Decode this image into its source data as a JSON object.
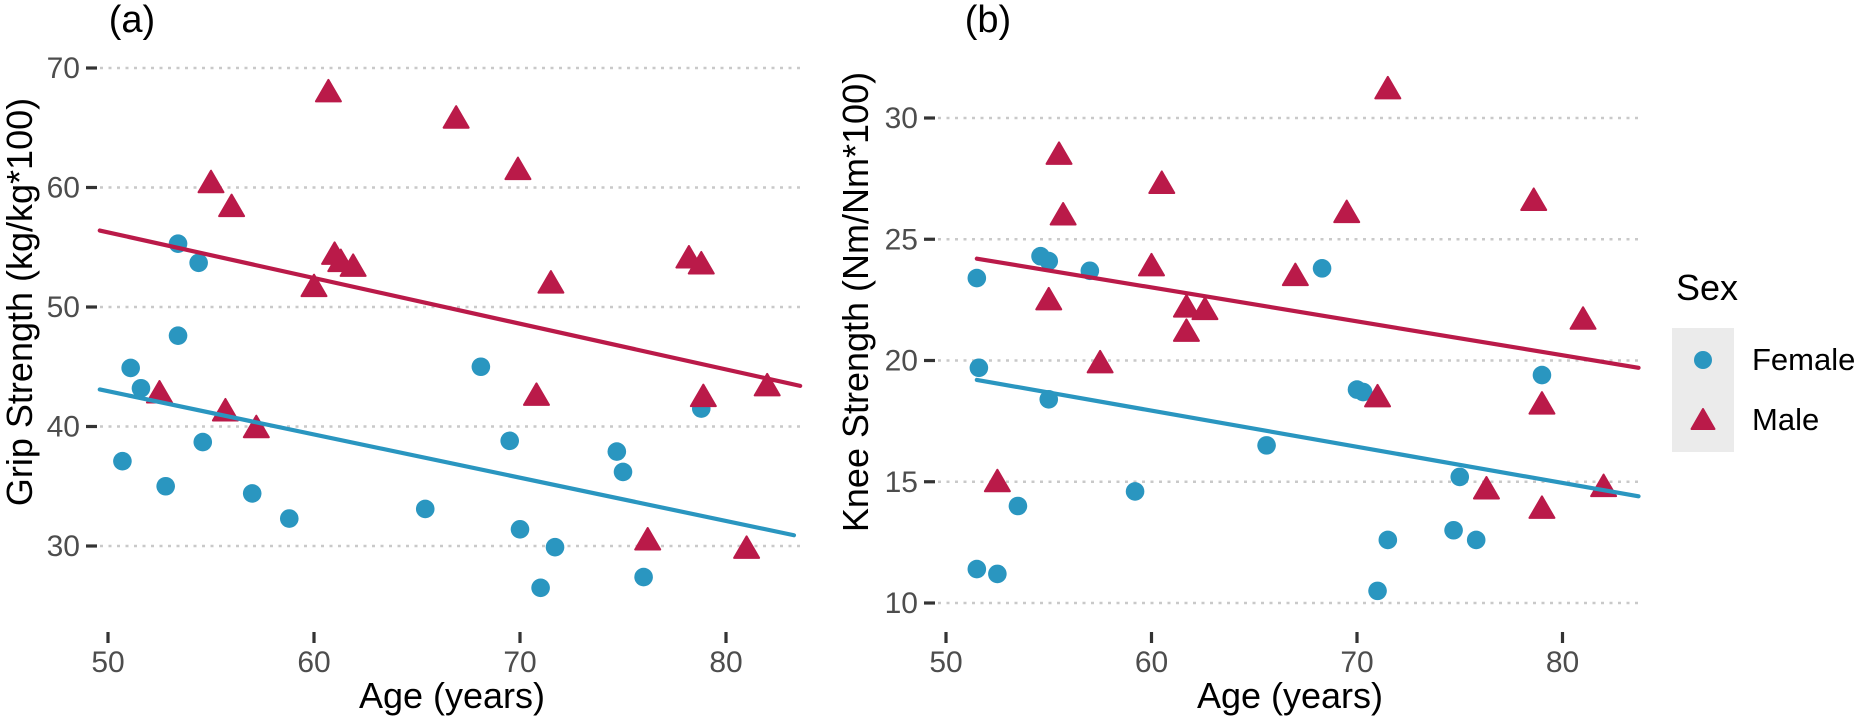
{
  "figure": {
    "background": "#ffffff",
    "description": "Two-panel scatter plot with linear trend lines by sex"
  },
  "colors": {
    "female": "#2a96c0",
    "male": "#ba1a49",
    "gridline": "#c9c9c9",
    "tick_text": "#4d4d4d",
    "text": "#000000",
    "legend_key_bg": "#ebebeb",
    "background": "#ffffff"
  },
  "legend": {
    "title": "Sex",
    "position": "right",
    "items": [
      {
        "label": "Female",
        "marker": "circle",
        "color": "#2a96c0"
      },
      {
        "label": "Male",
        "marker": "triangle",
        "color": "#ba1a49"
      }
    ]
  },
  "chart_data": [
    {
      "type": "scatter",
      "panel_label": "(a)",
      "xlabel": "Age (years)",
      "ylabel": "Grip Strength (kg/kg*100)",
      "xlim": [
        49.5,
        84.0
      ],
      "ylim": [
        23.0,
        73.5
      ],
      "xticks": [
        50,
        60,
        70,
        80
      ],
      "yticks": [
        30,
        40,
        50,
        60,
        70
      ],
      "grid": {
        "horizontal": "dotted",
        "vertical": "none"
      },
      "series": [
        {
          "name": "Female",
          "marker": "circle",
          "color": "#2a96c0",
          "points": [
            [
              50.7,
              37.1
            ],
            [
              51.1,
              44.9
            ],
            [
              51.6,
              43.2
            ],
            [
              52.8,
              35.0
            ],
            [
              53.4,
              55.3
            ],
            [
              53.4,
              47.6
            ],
            [
              54.4,
              53.7
            ],
            [
              54.6,
              38.7
            ],
            [
              57.0,
              34.4
            ],
            [
              58.8,
              32.3
            ],
            [
              65.4,
              33.1
            ],
            [
              68.1,
              45.0
            ],
            [
              69.5,
              38.8
            ],
            [
              70.0,
              31.4
            ],
            [
              71.0,
              26.5
            ],
            [
              71.7,
              29.9
            ],
            [
              74.7,
              37.9
            ],
            [
              75.0,
              36.2
            ],
            [
              76.0,
              27.4
            ],
            [
              78.8,
              41.5
            ]
          ]
        },
        {
          "name": "Male",
          "marker": "triangle",
          "color": "#ba1a49",
          "points": [
            [
              52.5,
              42.8
            ],
            [
              55.0,
              60.4
            ],
            [
              55.7,
              41.3
            ],
            [
              56.0,
              58.4
            ],
            [
              57.2,
              39.9
            ],
            [
              60.0,
              51.7
            ],
            [
              60.7,
              68.0
            ],
            [
              61.0,
              54.4
            ],
            [
              61.3,
              53.8
            ],
            [
              61.9,
              53.4
            ],
            [
              66.9,
              65.8
            ],
            [
              69.9,
              61.5
            ],
            [
              70.8,
              42.6
            ],
            [
              71.5,
              52.0
            ],
            [
              76.2,
              30.5
            ],
            [
              78.2,
              54.1
            ],
            [
              78.8,
              53.6
            ],
            [
              78.9,
              42.5
            ],
            [
              81.0,
              29.8
            ],
            [
              82.0,
              43.4
            ]
          ]
        }
      ],
      "trend_lines": [
        {
          "name": "Female",
          "color": "#2a96c0",
          "from": [
            49.6,
            43.1
          ],
          "to": [
            83.3,
            30.9
          ]
        },
        {
          "name": "Male",
          "color": "#ba1a49",
          "from": [
            49.6,
            56.4
          ],
          "to": [
            83.6,
            43.4
          ]
        }
      ]
    },
    {
      "type": "scatter",
      "panel_label": "(b)",
      "xlabel": "Age (years)",
      "ylabel": "Knee Strength (Nm/Nm*100)",
      "xlim": [
        49.5,
        84.2
      ],
      "ylim": [
        8.8,
        33.7
      ],
      "xticks": [
        50,
        60,
        70,
        80
      ],
      "yticks": [
        10,
        15,
        20,
        25,
        30
      ],
      "grid": {
        "horizontal": "dotted",
        "vertical": "none"
      },
      "series": [
        {
          "name": "Female",
          "marker": "circle",
          "color": "#2a96c0",
          "points": [
            [
              51.5,
              23.4
            ],
            [
              51.6,
              19.7
            ],
            [
              51.5,
              11.4
            ],
            [
              52.5,
              11.2
            ],
            [
              53.5,
              14.0
            ],
            [
              54.6,
              24.3
            ],
            [
              55.0,
              24.1
            ],
            [
              55.0,
              18.4
            ],
            [
              57.0,
              23.7
            ],
            [
              59.2,
              14.6
            ],
            [
              65.6,
              16.5
            ],
            [
              68.3,
              23.8
            ],
            [
              70.0,
              18.8
            ],
            [
              70.3,
              18.7
            ],
            [
              71.0,
              10.5
            ],
            [
              71.5,
              12.6
            ],
            [
              74.7,
              13.0
            ],
            [
              75.0,
              15.2
            ],
            [
              75.8,
              12.6
            ],
            [
              79.0,
              19.4
            ]
          ]
        },
        {
          "name": "Male",
          "marker": "triangle",
          "color": "#ba1a49",
          "points": [
            [
              52.5,
              15.0
            ],
            [
              55.0,
              22.5
            ],
            [
              55.5,
              28.5
            ],
            [
              55.7,
              26.0
            ],
            [
              57.5,
              19.9
            ],
            [
              60.0,
              23.9
            ],
            [
              60.5,
              27.3
            ],
            [
              61.7,
              22.2
            ],
            [
              61.7,
              21.2
            ],
            [
              62.6,
              22.1
            ],
            [
              67.0,
              23.5
            ],
            [
              69.5,
              26.1
            ],
            [
              71.0,
              18.5
            ],
            [
              71.5,
              31.2
            ],
            [
              76.3,
              14.7
            ],
            [
              78.6,
              26.6
            ],
            [
              79.0,
              18.2
            ],
            [
              79.0,
              13.9
            ],
            [
              81.0,
              21.7
            ],
            [
              82.0,
              14.8
            ]
          ]
        }
      ],
      "trend_lines": [
        {
          "name": "Female",
          "color": "#2a96c0",
          "from": [
            51.5,
            19.2
          ],
          "to": [
            83.7,
            14.4
          ]
        },
        {
          "name": "Male",
          "color": "#ba1a49",
          "from": [
            51.5,
            24.2
          ],
          "to": [
            83.7,
            19.7
          ]
        }
      ]
    }
  ]
}
